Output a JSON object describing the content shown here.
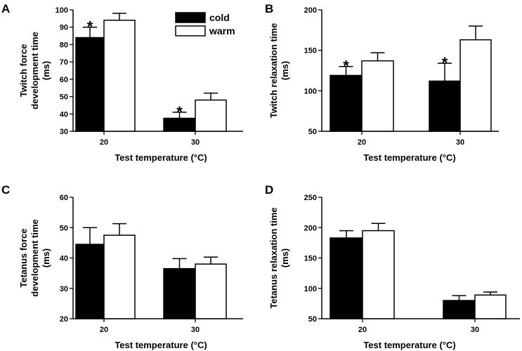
{
  "colors": {
    "cold": "#000000",
    "warm": "#ffffff",
    "outline": "#000000"
  },
  "legend": {
    "items": [
      {
        "label": "cold",
        "color": "#000000"
      },
      {
        "label": "warm",
        "color": "#ffffff"
      }
    ]
  },
  "chart_data": [
    {
      "panel": "A",
      "type": "bar",
      "categories": [
        "20",
        "30"
      ],
      "series": [
        {
          "name": "cold",
          "values": [
            84,
            37.5
          ],
          "errors": [
            6,
            3.5
          ]
        },
        {
          "name": "warm",
          "values": [
            94,
            48
          ],
          "errors": [
            4,
            4
          ]
        }
      ],
      "significance": [
        [
          "*",
          ""
        ],
        [
          "*",
          ""
        ]
      ],
      "xlabel": "Test temperature (°C)",
      "ylabel": [
        "Twitch force",
        "development time",
        "(ms)"
      ],
      "ylim": [
        30,
        100
      ],
      "yticks": [
        30,
        40,
        50,
        60,
        70,
        80,
        90,
        100
      ],
      "legend_position": "top-right"
    },
    {
      "panel": "B",
      "type": "bar",
      "categories": [
        "20",
        "30"
      ],
      "series": [
        {
          "name": "cold",
          "values": [
            119,
            112
          ],
          "errors": [
            11,
            22
          ]
        },
        {
          "name": "warm",
          "values": [
            137,
            163
          ],
          "errors": [
            10,
            17
          ]
        }
      ],
      "significance": [
        [
          "*",
          ""
        ],
        [
          "*",
          ""
        ]
      ],
      "xlabel": "Test temperature (°C)",
      "ylabel": [
        "Twitch relaxation time",
        "(ms)"
      ],
      "ylim": [
        50,
        200
      ],
      "yticks": [
        50,
        100,
        150,
        200
      ]
    },
    {
      "panel": "C",
      "type": "bar",
      "categories": [
        "20",
        "30"
      ],
      "series": [
        {
          "name": "cold",
          "values": [
            44.5,
            36.5
          ],
          "errors": [
            5.5,
            3.3
          ]
        },
        {
          "name": "warm",
          "values": [
            47.5,
            38
          ],
          "errors": [
            3.8,
            2.3
          ]
        }
      ],
      "xlabel": "Test temperature (°C)",
      "ylabel": [
        "Tetanus force",
        "development time",
        "(ms)"
      ],
      "ylim": [
        20,
        60
      ],
      "yticks": [
        20,
        30,
        40,
        50,
        60
      ]
    },
    {
      "panel": "D",
      "type": "bar",
      "categories": [
        "20",
        "30"
      ],
      "series": [
        {
          "name": "cold",
          "values": [
            183,
            80
          ],
          "errors": [
            12,
            8
          ]
        },
        {
          "name": "warm",
          "values": [
            195,
            89
          ],
          "errors": [
            12,
            5
          ]
        }
      ],
      "xlabel": "Test temperature (°C)",
      "ylabel": [
        "Tetanus relaxation time",
        "(ms)"
      ],
      "ylim": [
        50,
        250
      ],
      "yticks": [
        50,
        100,
        150,
        200,
        250
      ]
    }
  ]
}
